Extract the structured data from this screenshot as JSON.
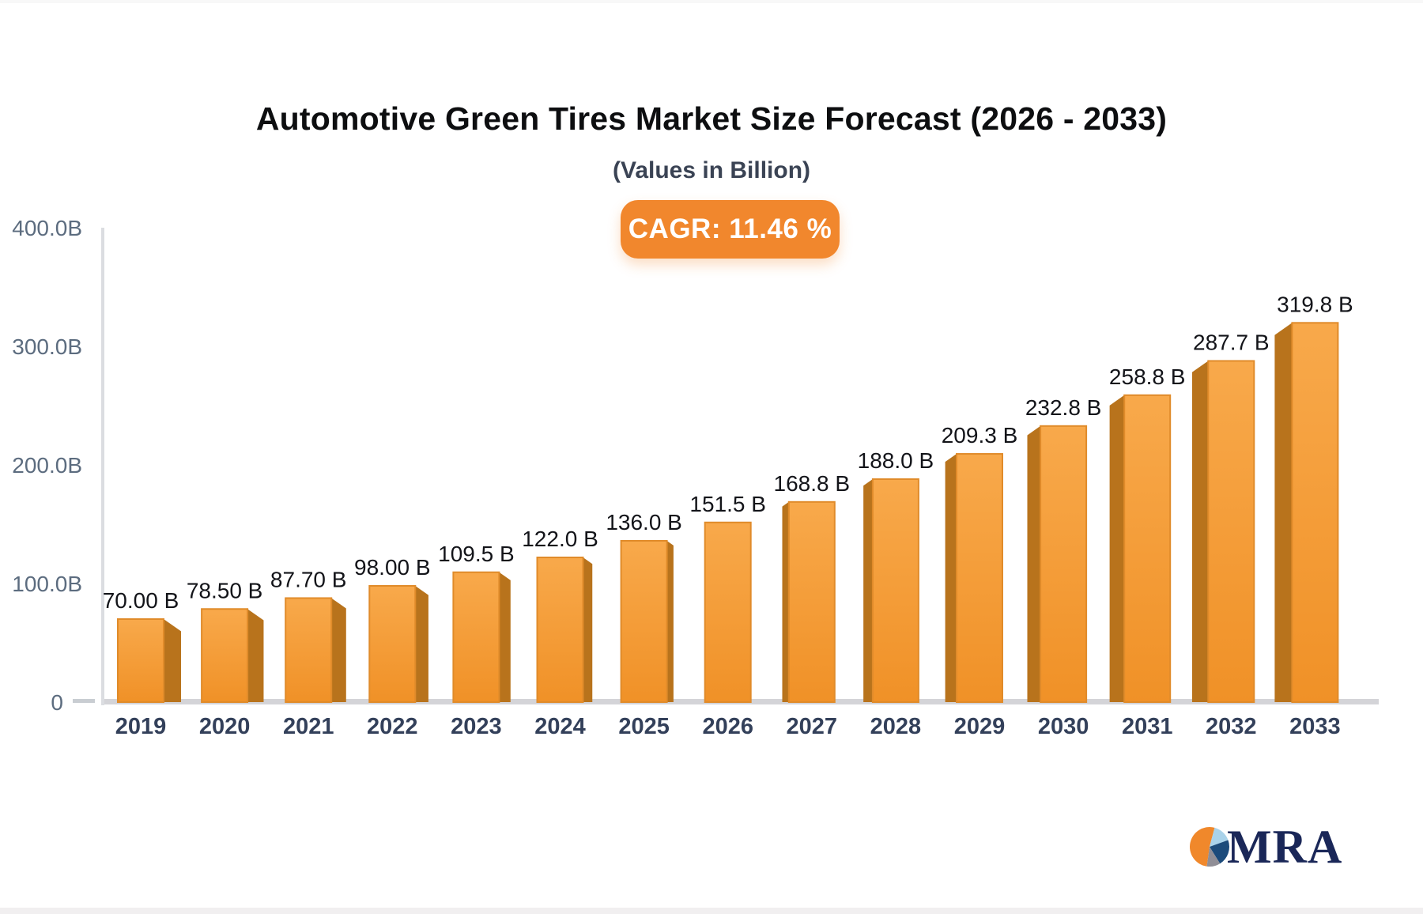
{
  "header": {
    "title": "Automotive Green Tires Market Size Forecast (2026 - 2033)",
    "subtitle": "(Values in Billion)",
    "cagr_label": "CAGR: 11.46 %"
  },
  "chart_data": {
    "type": "bar",
    "title": "Automotive Green Tires Market Size Forecast (2026 - 2033)",
    "subtitle": "(Values in Billion)",
    "cagr_percent": 11.46,
    "categories": [
      "2019",
      "2020",
      "2021",
      "2022",
      "2023",
      "2024",
      "2025",
      "2026",
      "2027",
      "2028",
      "2029",
      "2030",
      "2031",
      "2032",
      "2033"
    ],
    "values": [
      70.0,
      78.5,
      87.7,
      98.0,
      109.5,
      122.0,
      136.0,
      151.5,
      168.8,
      188.0,
      209.3,
      232.8,
      258.8,
      287.7,
      319.8
    ],
    "value_labels": [
      "70.00 B",
      "78.50 B",
      "87.70 B",
      "98.00 B",
      "109.5 B",
      "122.0 B",
      "136.0 B",
      "151.5 B",
      "168.8 B",
      "188.0 B",
      "209.3 B",
      "232.8 B",
      "258.8 B",
      "287.7 B",
      "319.8 B"
    ],
    "ylim": [
      0,
      400
    ],
    "y_ticks": [
      {
        "value": 400,
        "label": "400.0B",
        "dash": false
      },
      {
        "value": 300,
        "label": "300.0B",
        "dash": false
      },
      {
        "value": 200,
        "label": "200.0B",
        "dash": false
      },
      {
        "value": 100,
        "label": "100.0B",
        "dash": false
      },
      {
        "value": 0,
        "label": "0",
        "dash": true
      }
    ],
    "grid": false,
    "legend": "none",
    "colors": {
      "bar_front_top": "#f8a94b",
      "bar_front_bottom": "#f09127",
      "bar_front_stroke": "#e08b2a",
      "bar_side": "#b8731c",
      "axis_line": "#d4d4d8",
      "y_axis_line": "#dbdde1",
      "zero_tick": "#c9cdd2",
      "value_label": "#131419",
      "x_label": "#33405a",
      "y_label": "#5c6c7f"
    }
  },
  "badge": {
    "color": "#f1872d",
    "text_color": "#ffffff"
  },
  "logo": {
    "text": "MRA",
    "text_color": "#1a2758",
    "pie_slices": [
      {
        "name": "orange",
        "color": "#f0882b",
        "start_deg": 75,
        "end_deg": 262
      },
      {
        "name": "light-blue",
        "color": "#a9d2ea",
        "start_deg": 20,
        "end_deg": 75
      },
      {
        "name": "navy",
        "color": "#1c4b7b",
        "start_deg": -58,
        "end_deg": 20
      },
      {
        "name": "gray",
        "color": "#908e96",
        "start_deg": -98,
        "end_deg": -58
      }
    ]
  }
}
